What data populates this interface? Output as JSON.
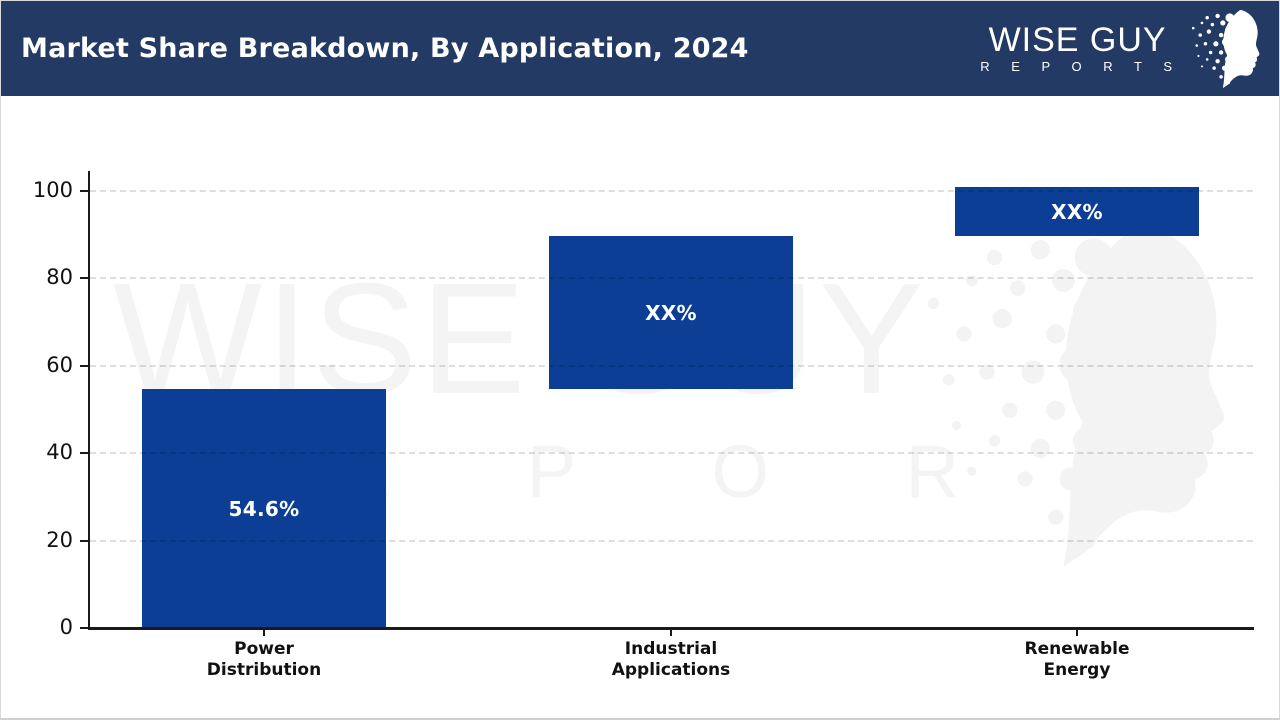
{
  "header": {
    "title": "Market Share Breakdown, By Application, 2024",
    "bg_color": "#233a64",
    "logo": {
      "line1": "WISE GUY",
      "line2": "R E P O R T S"
    }
  },
  "watermark": {
    "line1": "WISE GUY",
    "line2": "R E P O R T S"
  },
  "chart_data": {
    "type": "bar",
    "subtype": "waterfall",
    "title": "Market Share Breakdown, By Application, 2024",
    "categories": [
      "Power Distribution",
      "Industrial Applications",
      "Renewable Energy"
    ],
    "segments": [
      {
        "category": "Power Distribution",
        "start": 0,
        "end": 54.6,
        "label": "54.6%"
      },
      {
        "category": "Industrial Applications",
        "start": 54.6,
        "end": 89.6,
        "label": "XX%"
      },
      {
        "category": "Renewable Energy",
        "start": 89.6,
        "end": 100.8,
        "label": "XX%"
      }
    ],
    "yticks": [
      0,
      20,
      40,
      60,
      80,
      100
    ],
    "ylim": [
      0,
      104.5
    ],
    "xlabel": "",
    "ylabel": "",
    "grid": "horizontal-dashed",
    "legend": "none",
    "bar_color": "#0b3e94",
    "bar_label_color": "#ffffff",
    "axis_color": "#1a1a1a"
  }
}
